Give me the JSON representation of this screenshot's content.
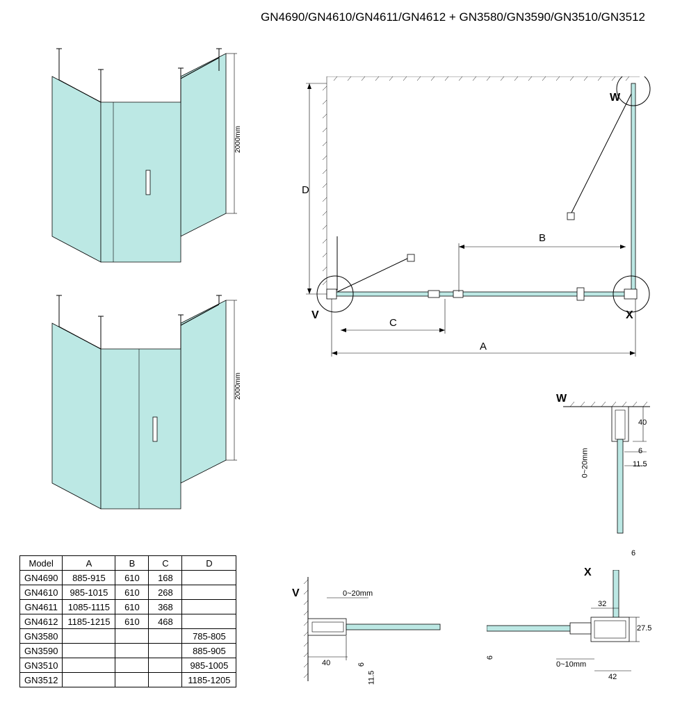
{
  "title": "GN4690/GN4610/GN4611/GN4612 + GN3580/GN3590/GN3510/GN3512",
  "iso_height": "2000mm",
  "plan": {
    "dim_A": "A",
    "dim_B": "B",
    "dim_C": "C",
    "dim_D": "D",
    "node_V": "V",
    "node_W": "W",
    "node_X": "X"
  },
  "detail_W": {
    "label": "W",
    "adj": "0~20mm",
    "d40": "40",
    "d6": "6",
    "d11_5": "11.5"
  },
  "detail_V": {
    "label": "V",
    "adj": "0~20mm",
    "d40": "40",
    "d6": "6",
    "d11_5": "11.5"
  },
  "detail_X": {
    "label": "X",
    "d6top": "6",
    "d32": "32",
    "d27_5": "27.5",
    "d42": "42",
    "adj": "0~10mm",
    "d6left": "6"
  },
  "table": {
    "headers": [
      "Model",
      "A",
      "B",
      "C",
      "D"
    ],
    "rows": [
      [
        "GN4690",
        "885-915",
        "610",
        "168",
        ""
      ],
      [
        "GN4610",
        "985-1015",
        "610",
        "268",
        ""
      ],
      [
        "GN4611",
        "1085-1115",
        "610",
        "368",
        ""
      ],
      [
        "GN4612",
        "1185-1215",
        "610",
        "468",
        ""
      ],
      [
        "GN3580",
        "",
        "",
        "",
        "785-805"
      ],
      [
        "GN3590",
        "",
        "",
        "",
        "885-905"
      ],
      [
        "GN3510",
        "",
        "",
        "",
        "985-1005"
      ],
      [
        "GN3512",
        "",
        "",
        "",
        "1185-1205"
      ]
    ]
  },
  "colors": {
    "glass": "#bce8e4",
    "line": "#000000",
    "bg": "#ffffff"
  }
}
